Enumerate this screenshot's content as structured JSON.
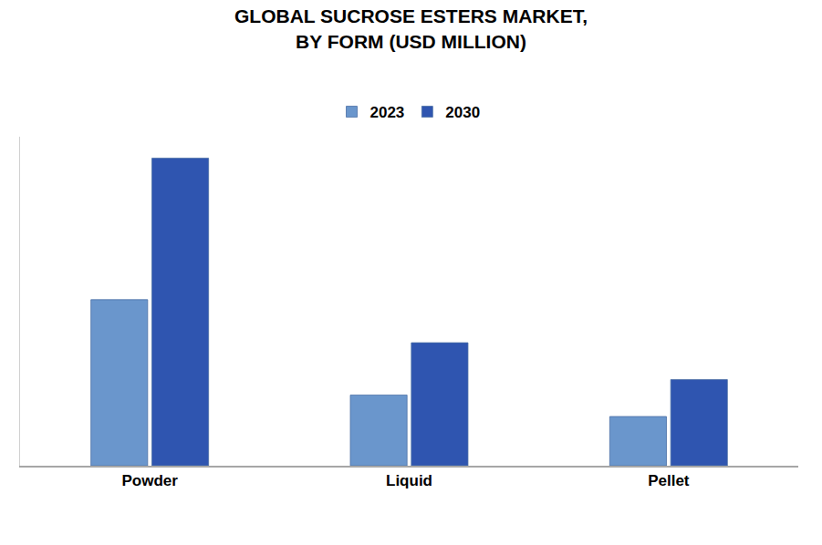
{
  "chart_data": {
    "type": "bar",
    "title": "GLOBAL SUCROSE ESTERS MARKET,\nBY FORM (USD MILLION)",
    "categories": [
      "Powder",
      "Liquid",
      "Pellet"
    ],
    "series": [
      {
        "name": "2023",
        "color": "#6a96cc",
        "values": [
          54,
          23,
          16
        ]
      },
      {
        "name": "2030",
        "color": "#2f55b0",
        "values": [
          100,
          40,
          28
        ]
      }
    ],
    "ylim": [
      0,
      107
    ],
    "yticks": [],
    "grid": false,
    "tick_labels": "x",
    "legend": "top"
  }
}
